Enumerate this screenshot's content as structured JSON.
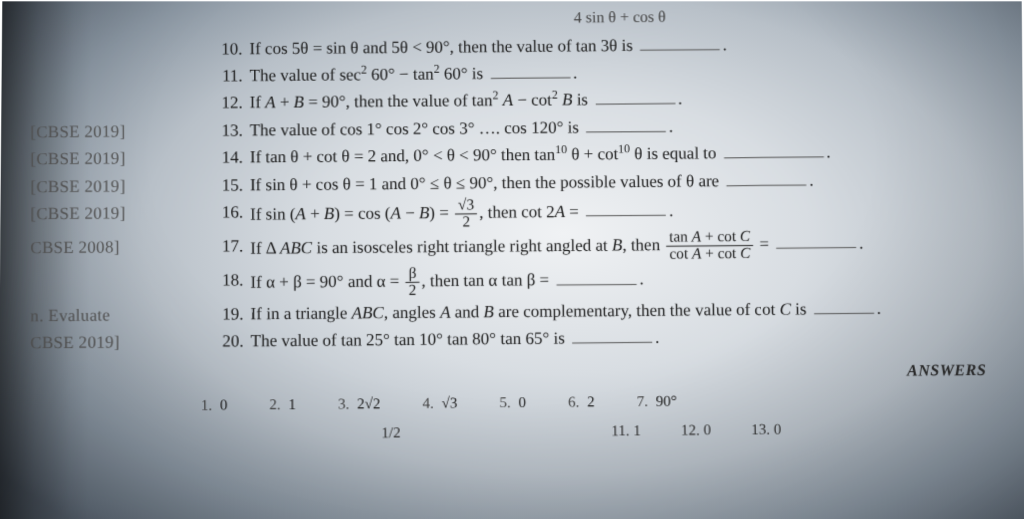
{
  "partial_top": "4 sin θ + cos θ",
  "questions": [
    {
      "num": "10.",
      "margin": "",
      "html": "If cos 5θ = sin θ and 5θ < 90°, then the value of tan 3θ is <span class='blank'></span>."
    },
    {
      "num": "11.",
      "margin": "",
      "html": "The value of sec<sup>2</sup> 60° − tan<sup>2</sup> 60° is <span class='blank'></span>."
    },
    {
      "num": "12.",
      "margin": "",
      "html": "If <i>A</i> + <i>B</i> = 90°, then the value of tan<sup>2</sup> <i>A</i> − cot<sup>2</sup> <i>B</i> is <span class='blank'></span>."
    },
    {
      "num": "13.",
      "margin": "[CBSE 2019]",
      "html": "The value of cos 1° cos 2° cos 3° …. cos 120° is <span class='blank'></span>."
    },
    {
      "num": "14.",
      "margin": "[CBSE 2019]",
      "html": "If tan θ + cot θ = 2 and, 0° < θ < 90° then tan<sup>10</sup> θ + cot<sup>10</sup> θ is equal to <span class='blank long'></span>."
    },
    {
      "num": "15.",
      "margin": "[CBSE 2019]",
      "html": "If sin θ + cos θ = 1 and 0° ≤ θ ≤ 90°, then the possible values of θ are <span class='blank'></span>."
    },
    {
      "num": "16.",
      "margin": "[CBSE 2019]",
      "html": "If sin (<i>A</i> + <i>B</i>) = cos (<i>A</i> − <i>B</i>) = <span class='frac'><span class='num'>√3</span><span class='den'>2</span></span>, then cot 2<i>A</i> = <span class='blank'></span>."
    },
    {
      "num": "17.",
      "margin": "CBSE 2008]",
      "html": "If Δ <i>ABC</i> is an isosceles right triangle right angled at <i>B</i>, then <span class='frac'><span class='num'>tan <i>A</i> + cot <i>C</i></span><span class='den'>cot <i>A</i> + cot <i>C</i></span></span> = <span class='blank'></span>."
    },
    {
      "num": "18.",
      "margin": "",
      "html": "If α + β = 90° and α = <span class='frac'><span class='num'>β</span><span class='den'>2</span></span>, then tan α tan β = <span class='blank'></span>."
    },
    {
      "num": "19.",
      "margin": "n. Evaluate",
      "html": "If in a triangle <i>ABC</i>, angles <i>A</i> and <i>B</i> are complementary, then the value of cot <i>C</i> is <span class='blank short'></span>."
    },
    {
      "num": "20.",
      "margin": "CBSE 2019]",
      "html": "The value of tan 25° tan 10° tan 80° tan 65° is <span class='blank'></span>."
    }
  ],
  "answers_label": "ANSWERS",
  "answers_row1": [
    {
      "n": "1.",
      "v": "0"
    },
    {
      "n": "2.",
      "v": "1"
    },
    {
      "n": "3.",
      "v": "2√2"
    },
    {
      "n": "4.",
      "v": "√3"
    },
    {
      "n": "5.",
      "v": "0"
    },
    {
      "n": "6.",
      "v": "2"
    },
    {
      "n": "7.",
      "v": "90°"
    }
  ],
  "answers_row2": [
    {
      "n": "11.",
      "v": "1"
    },
    {
      "n": "12.",
      "v": "0"
    },
    {
      "n": "13.",
      "v": "0"
    }
  ],
  "bottom_partial": [
    "1/2"
  ]
}
